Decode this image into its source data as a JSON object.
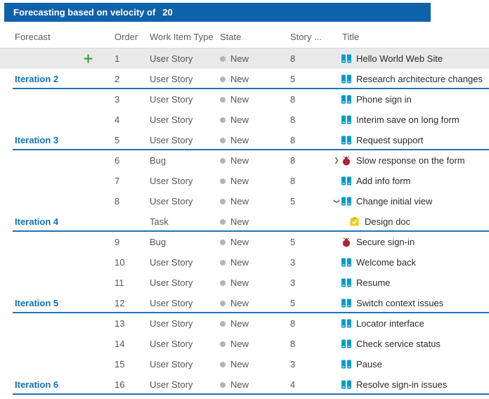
{
  "header": {
    "label": "Forecasting based on velocity of",
    "velocity": "20"
  },
  "table": {
    "columns": [
      "Forecast",
      "Order",
      "Work Item Type",
      "State",
      "Story ...",
      "Title"
    ],
    "rows": [
      {
        "forecast": "",
        "add_button": true,
        "order": "1",
        "type": "User Story",
        "state": "New",
        "points": "8",
        "icon": "story",
        "title": "Hello World Web Site",
        "highlighted": true
      },
      {
        "forecast": "Iteration 2",
        "order": "2",
        "type": "User Story",
        "state": "New",
        "points": "5",
        "icon": "story",
        "title": "Research architecture changes",
        "line_after": true
      },
      {
        "forecast": "",
        "order": "3",
        "type": "User Story",
        "state": "New",
        "points": "8",
        "icon": "story",
        "title": "Phone sign in"
      },
      {
        "forecast": "",
        "order": "4",
        "type": "User Story",
        "state": "New",
        "points": "8",
        "icon": "story",
        "title": "Interim save on long form"
      },
      {
        "forecast": "Iteration 3",
        "order": "5",
        "type": "User Story",
        "state": "New",
        "points": "8",
        "icon": "story",
        "title": "Request support",
        "line_after": true
      },
      {
        "forecast": "",
        "order": "6",
        "type": "Bug",
        "state": "New",
        "points": "8",
        "icon": "bug",
        "title": "Slow response on the form",
        "expand": "collapsed"
      },
      {
        "forecast": "",
        "order": "7",
        "type": "User Story",
        "state": "New",
        "points": "8",
        "icon": "story",
        "title": "Add info form"
      },
      {
        "forecast": "",
        "order": "8",
        "type": "User Story",
        "state": "New",
        "points": "5",
        "icon": "story",
        "title": "Change initial view",
        "expand": "expanded"
      },
      {
        "forecast": "Iteration 4",
        "order": "",
        "type": "Task",
        "state": "New",
        "points": "",
        "icon": "task",
        "title": "Design doc",
        "indent": 1,
        "line_after": true
      },
      {
        "forecast": "",
        "order": "9",
        "type": "Bug",
        "state": "New",
        "points": "5",
        "icon": "bug",
        "title": "Secure sign-in"
      },
      {
        "forecast": "",
        "order": "10",
        "type": "User Story",
        "state": "New",
        "points": "3",
        "icon": "story",
        "title": "Welcome back"
      },
      {
        "forecast": "",
        "order": "11",
        "type": "User Story",
        "state": "New",
        "points": "3",
        "icon": "story",
        "title": "Resume"
      },
      {
        "forecast": "Iteration 5",
        "order": "12",
        "type": "User Story",
        "state": "New",
        "points": "5",
        "icon": "story",
        "title": "Switch context issues",
        "line_after": true
      },
      {
        "forecast": "",
        "order": "13",
        "type": "User Story",
        "state": "New",
        "points": "8",
        "icon": "story",
        "title": "Locator interface"
      },
      {
        "forecast": "",
        "order": "14",
        "type": "User Story",
        "state": "New",
        "points": "8",
        "icon": "story",
        "title": "Check service status"
      },
      {
        "forecast": "",
        "order": "15",
        "type": "User Story",
        "state": "New",
        "points": "3",
        "icon": "story",
        "title": "Pause"
      },
      {
        "forecast": "Iteration 6",
        "order": "16",
        "type": "User Story",
        "state": "New",
        "points": "4",
        "icon": "story",
        "title": "Resolve sign-in issues",
        "line_after": true
      }
    ]
  },
  "icons": {
    "story": "user-story-book-icon",
    "bug": "bug-ladybug-icon",
    "task": "task-clipboard-icon",
    "add": "add-plus-icon",
    "state": "state-dot-icon",
    "collapsed": "chevron-right-icon",
    "expanded": "chevron-down-icon"
  },
  "colors": {
    "topbar_bg": "#0d62ab",
    "iteration_text": "#1271b6",
    "forecast_line": "#2173b8",
    "highlight_row": "#e9e9e9",
    "story_blue": "#009ccc",
    "bug_red": "#cc293d",
    "task_yellow": "#f2cb1d",
    "plus_green": "#339933",
    "state_dot": "#b4b4b4"
  }
}
